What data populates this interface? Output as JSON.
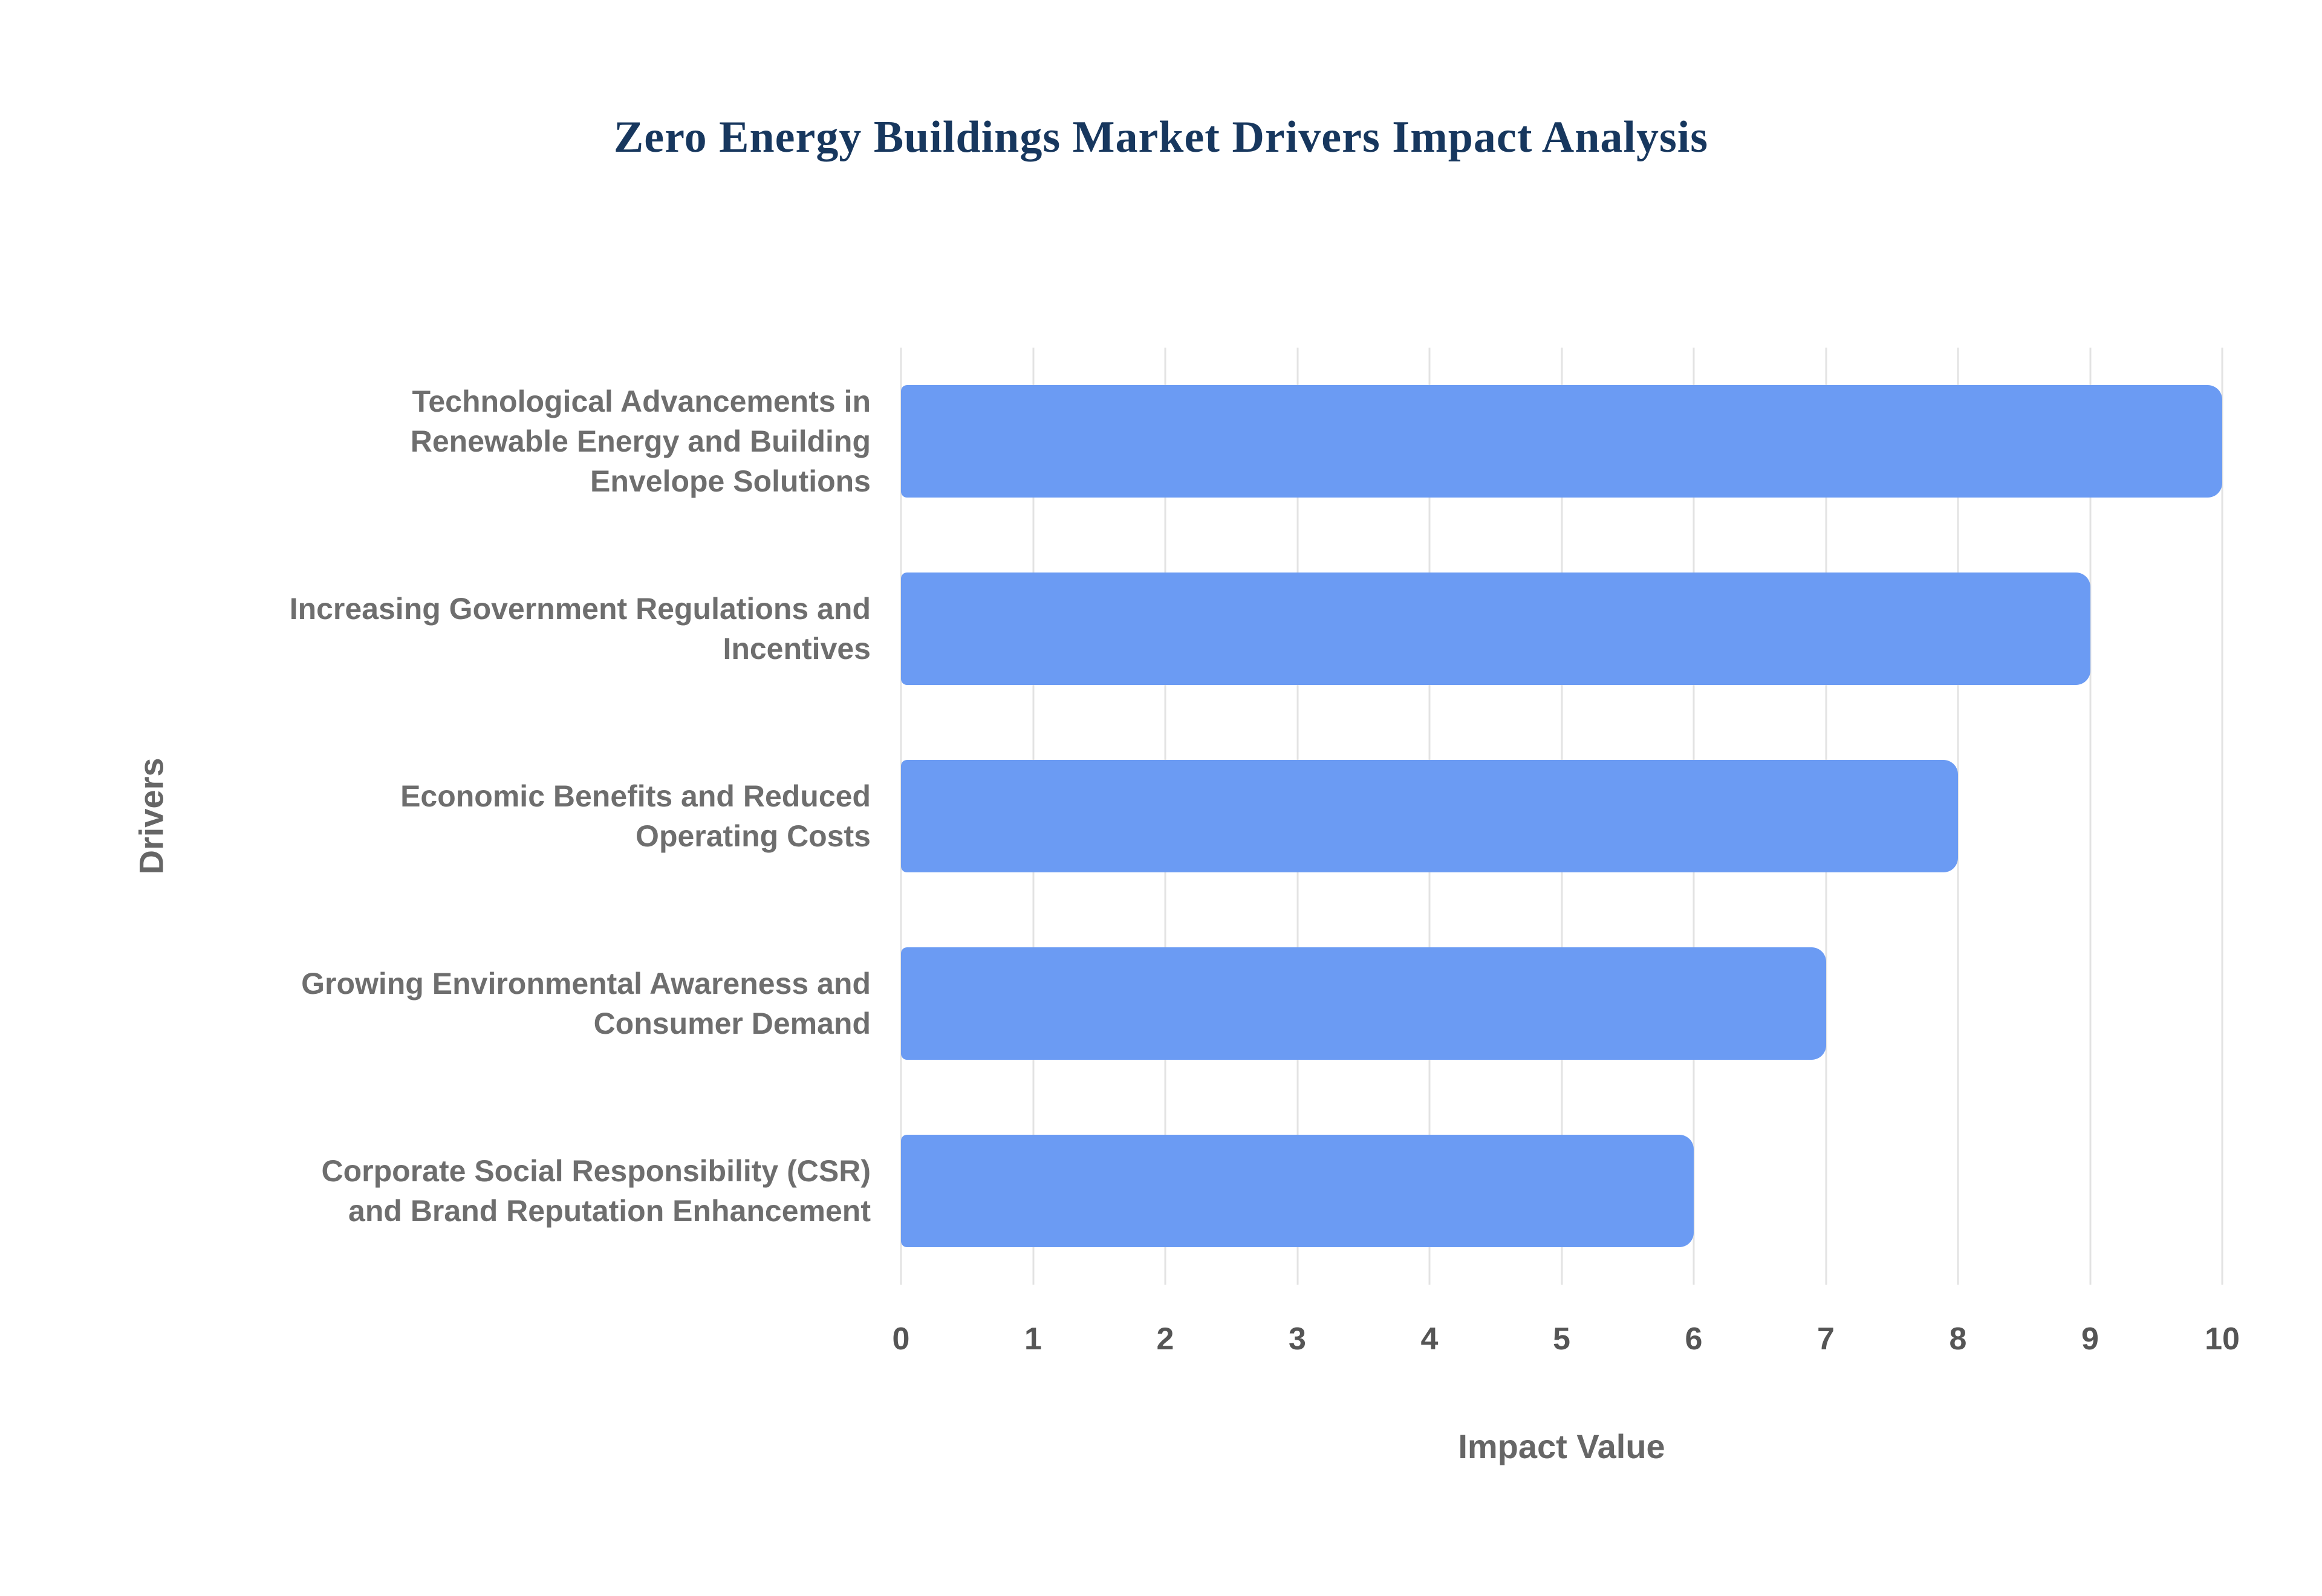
{
  "title": "Zero Energy Buildings Market Drivers Impact Analysis",
  "chart_data": {
    "type": "bar",
    "orientation": "horizontal",
    "title": "Zero Energy Buildings Market Drivers Impact Analysis",
    "xlabel": "Impact Value",
    "ylabel": "Drivers",
    "categories": [
      "Technological Advancements in Renewable Energy and Building Envelope Solutions",
      "Increasing Government Regulations and Incentives",
      "Economic Benefits and Reduced Operating Costs",
      "Growing Environmental Awareness and Consumer Demand",
      "Corporate Social Responsibility (CSR) and Brand Reputation Enhancement"
    ],
    "values": [
      10,
      9,
      8,
      7,
      6
    ],
    "xlim": [
      0,
      10
    ],
    "xticks": [
      0,
      1,
      2,
      3,
      4,
      5,
      6,
      7,
      8,
      9,
      10
    ],
    "grid": true,
    "legend": false,
    "colors": {
      "bar": "#6b9bf3",
      "title": "#17375e",
      "axis_title": "#666666",
      "category_label": "#6e6e6e",
      "tick_label": "#555555",
      "gridline": "#e3e3e3",
      "background": "#ffffff"
    }
  }
}
